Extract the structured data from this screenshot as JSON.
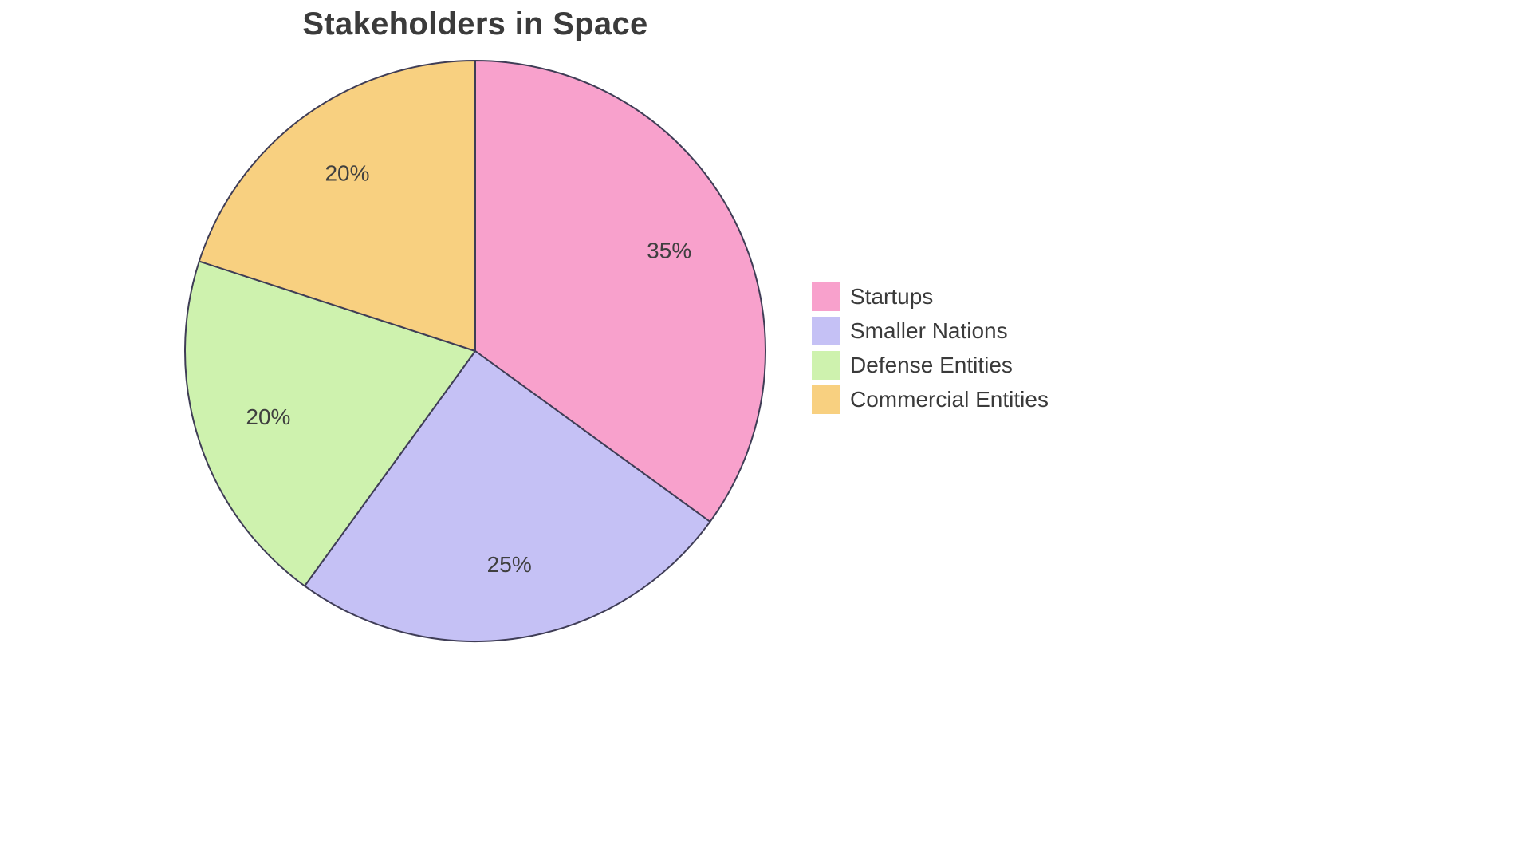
{
  "title": "Stakeholders in Space",
  "chart_data": {
    "type": "pie",
    "title": "Stakeholders in Space",
    "legend_position": "right",
    "start_angle_deg": -90,
    "direction": "clockwise",
    "stroke_color": "#3F3D56",
    "label_color": "#3F3F3F",
    "slices": [
      {
        "label": "Startups",
        "value": 35,
        "percent_label": "35%",
        "color": "#F8A1CC"
      },
      {
        "label": "Smaller Nations",
        "value": 25,
        "percent_label": "25%",
        "color": "#C5C1F5"
      },
      {
        "label": "Defense Entities",
        "value": 20,
        "percent_label": "20%",
        "color": "#CEF2AE"
      },
      {
        "label": "Commercial Entities",
        "value": 20,
        "percent_label": "20%",
        "color": "#F8D080"
      }
    ]
  }
}
